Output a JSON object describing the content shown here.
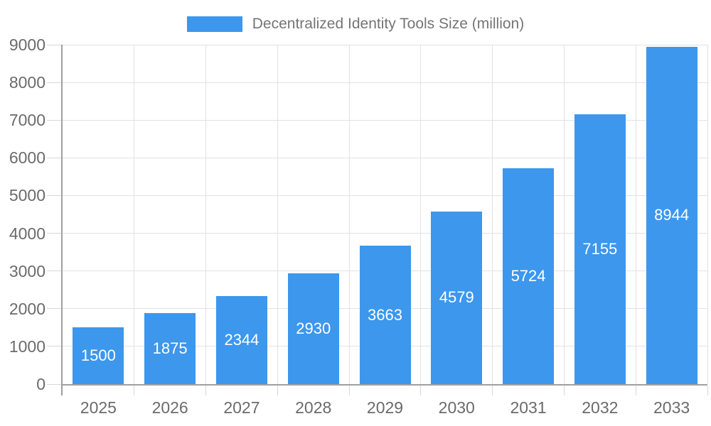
{
  "chart_data": {
    "type": "bar",
    "title": "Decentralized Identity Tools Size (million)",
    "categories": [
      "2025",
      "2026",
      "2027",
      "2028",
      "2029",
      "2030",
      "2031",
      "2032",
      "2033"
    ],
    "values": [
      1500,
      1875,
      2344,
      2930,
      3663,
      4579,
      5724,
      7155,
      8944
    ],
    "xlabel": "",
    "ylabel": "",
    "ylim": [
      0,
      9000
    ],
    "yticks": [
      0,
      1000,
      2000,
      3000,
      4000,
      5000,
      6000,
      7000,
      8000,
      9000
    ],
    "grid": true,
    "legend_position": "top-center",
    "bar_labels_inside": true,
    "colors": {
      "bar": "#3C97ED",
      "bar_label": "#FFFFFF",
      "legend_text": "#757575",
      "axis_label": "#6B6B6B",
      "axis_line": "#A0A0A0",
      "gridline": "#E2E2E2",
      "tick": "#D8D8D8",
      "background": "#FFFFFF"
    }
  }
}
